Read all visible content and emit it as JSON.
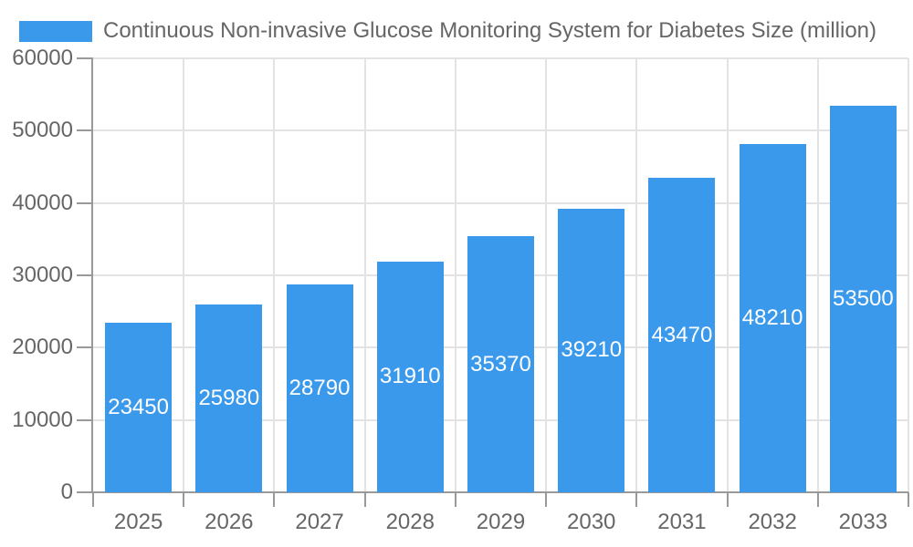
{
  "legend": {
    "label": "Continuous Non-invasive Glucose Monitoring System for Diabetes Size (million)"
  },
  "chart_data": {
    "type": "bar",
    "title": "Continuous Non-invasive Glucose Monitoring System for Diabetes Size (million)",
    "categories": [
      "2025",
      "2026",
      "2027",
      "2028",
      "2029",
      "2030",
      "2031",
      "2032",
      "2033"
    ],
    "series": [
      {
        "name": "Continuous Non-invasive Glucose Monitoring System for Diabetes Size (million)",
        "values": [
          23450,
          25980,
          28790,
          31910,
          35370,
          39210,
          43470,
          48210,
          53500
        ]
      }
    ],
    "values": [
      23450,
      25980,
      28790,
      31910,
      35370,
      39210,
      43470,
      48210,
      53500
    ],
    "value_labels": [
      "23450",
      "25980",
      "28790",
      "31910",
      "35370",
      "39210",
      "43470",
      "48210",
      "53500"
    ],
    "xlabel": "",
    "ylabel": "",
    "ylim": [
      0,
      60000
    ],
    "y_ticks": [
      0,
      10000,
      20000,
      30000,
      40000,
      50000,
      60000
    ],
    "y_tick_labels": [
      "0",
      "10000",
      "20000",
      "30000",
      "40000",
      "50000",
      "60000"
    ],
    "grid": true,
    "legend_position": "top",
    "colors": {
      "bar": "#3b99ec",
      "grid": "#e3e3e3",
      "axis": "#999999",
      "text": "#666666",
      "value_label": "#ffffff",
      "background": "#ffffff"
    }
  }
}
